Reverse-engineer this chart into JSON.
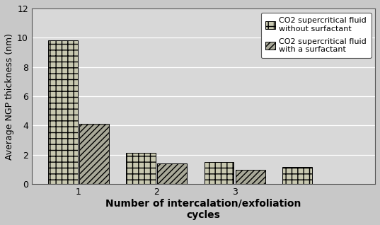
{
  "series1_label": "CO2 supercritical fluid\nwithout surfactant",
  "series2_label": "CO2 supercritical fluid\nwith a surfactant",
  "series1_values": [
    9.8,
    2.15,
    1.5,
    1.15
  ],
  "series2_values": [
    4.1,
    1.4,
    1.0
  ],
  "series1_x": [
    1,
    2,
    3,
    4
  ],
  "series2_x": [
    1,
    2,
    3
  ],
  "x_ticks": [
    1,
    2,
    3
  ],
  "x_tick_labels": [
    "1",
    "2",
    "3"
  ],
  "xlabel_line1": "Number of intercalation/exfoliation",
  "xlabel_line2": "cycles",
  "ylabel": "Average NGP thickness (nm)",
  "ylim": [
    0,
    12
  ],
  "yticks": [
    0,
    2,
    4,
    6,
    8,
    10,
    12
  ],
  "xlim": [
    0.4,
    4.8
  ],
  "background_color": "#c8c8c8",
  "plot_bg_color": "#d8d8d8",
  "bar_color1": "#c8c8b0",
  "bar_color2": "#a8a898",
  "bar_width": 0.38,
  "bar_gap": 0.02,
  "axis_fontsize": 9,
  "legend_fontsize": 8,
  "tick_fontsize": 9
}
